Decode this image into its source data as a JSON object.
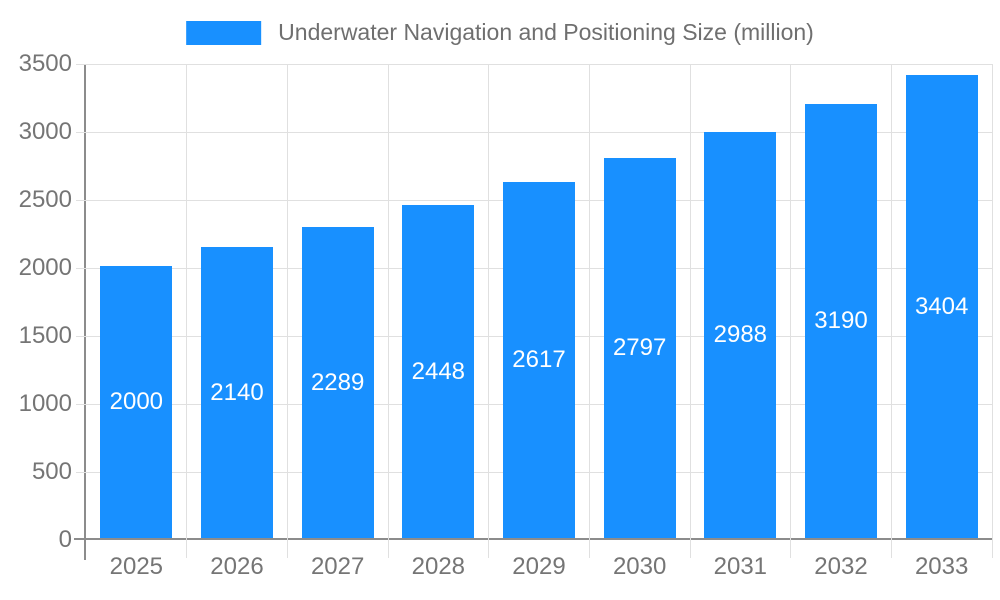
{
  "page": {
    "background": "#FFFFFF"
  },
  "legend": {
    "swatch_color": "#1890FF"
  },
  "chart_data": {
    "type": "bar",
    "title": "Underwater Navigation and Positioning Size (million)",
    "categories": [
      "2025",
      "2026",
      "2027",
      "2028",
      "2029",
      "2030",
      "2031",
      "2032",
      "2033"
    ],
    "values": [
      2000,
      2140,
      2289,
      2448,
      2617,
      2797,
      2988,
      3190,
      3404
    ],
    "xlabel": "",
    "ylabel": "",
    "ylim": [
      0,
      3500
    ],
    "yticks": [
      0,
      500,
      1000,
      1500,
      2000,
      2500,
      3000,
      3500
    ],
    "bar_color": "#1890FF",
    "bar_label_color": "#FFFFFF",
    "tick_label_color": "#757575",
    "axis_color": "#8C8C8C",
    "grid_color": "#E0E0E0",
    "grid": true,
    "legend_position": "top"
  }
}
